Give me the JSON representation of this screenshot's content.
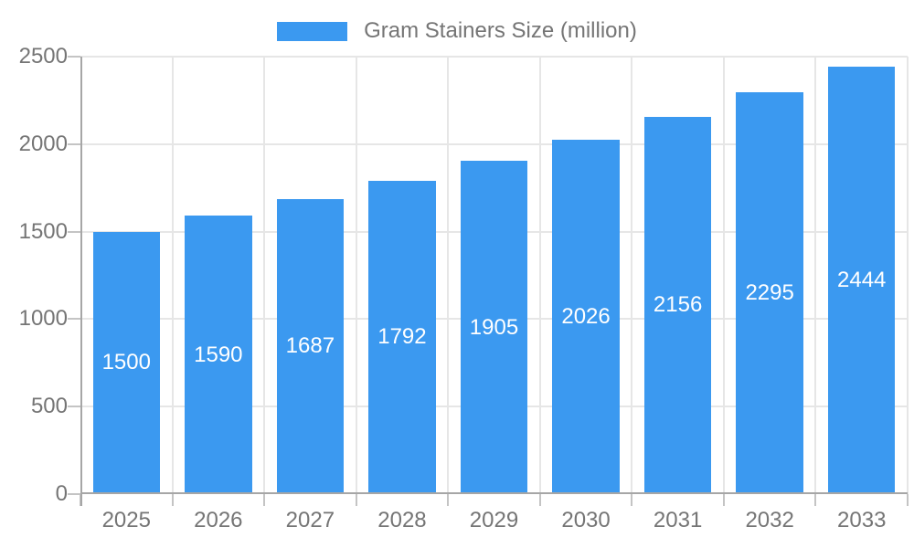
{
  "chart_data": {
    "type": "bar",
    "title": "Gram Stainers Size (million)",
    "legend": {
      "label": "Gram Stainers Size (million)",
      "position": "top"
    },
    "categories": [
      "2025",
      "2026",
      "2027",
      "2028",
      "2029",
      "2030",
      "2031",
      "2032",
      "2033"
    ],
    "series": [
      {
        "name": "Gram Stainers Size (million)",
        "values": [
          1500,
          1590,
          1687,
          1792,
          1905,
          2026,
          2156,
          2295,
          2444
        ]
      }
    ],
    "xlabel": "",
    "ylabel": "",
    "ylim": [
      0,
      2500
    ],
    "yticks": [
      0,
      500,
      1000,
      1500,
      2000,
      2500
    ],
    "grid": true,
    "annotations_inside_bars": true,
    "colors": {
      "bar": "#3B99F0",
      "axis_text": "#757575",
      "annotation_text": "#ffffff",
      "gridline": "#e6e6e6",
      "axis_line": "#a6a6a6",
      "tick": "#c4c4c4",
      "background": "#ffffff"
    }
  }
}
